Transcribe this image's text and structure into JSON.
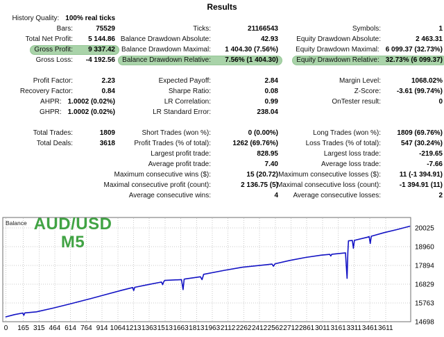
{
  "title": "Results",
  "accent": {
    "highlight_bg": "#a9d3a9",
    "highlight_border": "#95c695",
    "watermark_green": "#41a344",
    "line_blue": "#1212c4",
    "grid_gray": "#c9c9c9",
    "chart_border": "#6e6e6e"
  },
  "stats": {
    "left": {
      "rows": [
        {
          "label": "History Quality:",
          "value": "100% real ticks",
          "hl": false
        },
        {
          "label": "Bars:",
          "value": "75529",
          "hl": false
        },
        {
          "label": "Total Net Profit:",
          "value": "5 144.86",
          "hl": false
        },
        {
          "label": "Gross Profit:",
          "value": "9 337.42",
          "hl": true
        },
        {
          "label": "Gross Loss:",
          "value": "-4 192.56",
          "hl": false
        },
        {
          "label": "",
          "value": "",
          "hl": false
        },
        {
          "label": "Profit Factor:",
          "value": "2.23",
          "hl": false
        },
        {
          "label": "Recovery Factor:",
          "value": "0.84",
          "hl": false
        },
        {
          "label": "AHPR:",
          "value": "1.0002 (0.02%)",
          "hl": false
        },
        {
          "label": "GHPR:",
          "value": "1.0002 (0.02%)",
          "hl": false
        },
        {
          "label": "",
          "value": "",
          "hl": false
        },
        {
          "label": "Total Trades:",
          "value": "1809",
          "hl": false
        },
        {
          "label": "Total Deals:",
          "value": "3618",
          "hl": false
        }
      ]
    },
    "middle": {
      "rows": [
        {
          "label": "",
          "value": "",
          "hl": false
        },
        {
          "label": "Ticks:",
          "value": "21166543",
          "hl": false
        },
        {
          "label": "Balance Drawdown Absolute:",
          "value": "42.93",
          "hl": false
        },
        {
          "label": "Balance Drawdown Maximal:",
          "value": "1 404.30 (7.56%)",
          "hl": false
        },
        {
          "label": "Balance Drawdown Relative:",
          "value": "7.56% (1 404.30)",
          "hl": true
        },
        {
          "label": "",
          "value": "",
          "hl": false
        },
        {
          "label": "Expected Payoff:",
          "value": "2.84",
          "hl": false
        },
        {
          "label": "Sharpe Ratio:",
          "value": "0.08",
          "hl": false
        },
        {
          "label": "LR Correlation:",
          "value": "0.99",
          "hl": false
        },
        {
          "label": "LR Standard Error:",
          "value": "238.04",
          "hl": false
        },
        {
          "label": "",
          "value": "",
          "hl": false
        },
        {
          "label": "Short Trades (won %):",
          "value": "0 (0.00%)",
          "hl": false
        },
        {
          "label": "Profit Trades (% of total):",
          "value": "1262 (69.76%)",
          "hl": false
        },
        {
          "label": "Largest profit trade:",
          "value": "828.95",
          "hl": false
        },
        {
          "label": "Average profit trade:",
          "value": "7.40",
          "hl": false
        },
        {
          "label": "Maximum consecutive wins ($):",
          "value": "15 (20.72)",
          "hl": false
        },
        {
          "label": "Maximal consecutive profit (count):",
          "value": "2 136.75 (5)",
          "hl": false
        },
        {
          "label": "Average consecutive wins:",
          "value": "4",
          "hl": false
        }
      ]
    },
    "right": {
      "rows": [
        {
          "label": "",
          "value": "",
          "hl": false
        },
        {
          "label": "Symbols:",
          "value": "1",
          "hl": false
        },
        {
          "label": "Equity Drawdown Absolute:",
          "value": "2 463.31",
          "hl": false
        },
        {
          "label": "Equity Drawdown Maximal:",
          "value": "6 099.37 (32.73%)",
          "hl": false
        },
        {
          "label": "Equity Drawdown Relative:",
          "value": "32.73% (6 099.37)",
          "hl": true
        },
        {
          "label": "",
          "value": "",
          "hl": false
        },
        {
          "label": "Margin Level:",
          "value": "1068.02%",
          "hl": false
        },
        {
          "label": "Z-Score:",
          "value": "-3.61 (99.74%)",
          "hl": false
        },
        {
          "label": "OnTester result:",
          "value": "0",
          "hl": false
        },
        {
          "label": "",
          "value": "",
          "hl": false
        },
        {
          "label": "",
          "value": "",
          "hl": false
        },
        {
          "label": "Long Trades (won %):",
          "value": "1809 (69.76%)",
          "hl": false
        },
        {
          "label": "Loss Trades (% of total):",
          "value": "547 (30.24%)",
          "hl": false
        },
        {
          "label": "Largest loss trade:",
          "value": "-219.65",
          "hl": false
        },
        {
          "label": "Average loss trade:",
          "value": "-7.66",
          "hl": false
        },
        {
          "label": "Maximum consecutive losses ($):",
          "value": "11 (-1 394.91)",
          "hl": false
        },
        {
          "label": "Maximal consecutive loss (count):",
          "value": "-1 394.91 (11)",
          "hl": false
        },
        {
          "label": "Average consecutive losses:",
          "value": "2",
          "hl": false
        }
      ]
    }
  },
  "chart": {
    "balance_label": "Balance",
    "watermark_line1": "AUD/USD",
    "watermark_line2": "M5"
  },
  "chart_data": {
    "type": "line",
    "title": "Balance",
    "series_name": "Balance",
    "symbol": "AUD/USD",
    "timeframe": "M5",
    "x_ticks": [
      0,
      165,
      315,
      464,
      614,
      764,
      914,
      1064,
      1213,
      1363,
      1513,
      1663,
      1813,
      1963,
      2112,
      2262,
      2412,
      2562,
      2712,
      2861,
      3011,
      3161,
      3311,
      3461,
      3611
    ],
    "y_ticks": [
      14698,
      15763,
      16829,
      17894,
      18960,
      20025
    ],
    "y_grid": [
      15763,
      16829,
      17894,
      18960,
      20025
    ],
    "x_range": [
      -30,
      3850
    ],
    "y_range": [
      14698,
      20617
    ],
    "grid": true,
    "legend_position": "none",
    "points": [
      [
        0,
        14975
      ],
      [
        80,
        15100
      ],
      [
        160,
        15190
      ],
      [
        170,
        15060
      ],
      [
        180,
        15200
      ],
      [
        290,
        15260
      ],
      [
        450,
        15470
      ],
      [
        620,
        15725
      ],
      [
        800,
        16000
      ],
      [
        950,
        16240
      ],
      [
        1100,
        16480
      ],
      [
        1205,
        16640
      ],
      [
        1215,
        16470
      ],
      [
        1225,
        16650
      ],
      [
        1350,
        16800
      ],
      [
        1480,
        16950
      ],
      [
        1490,
        16800
      ],
      [
        1500,
        16960
      ],
      [
        1510,
        17040
      ],
      [
        1670,
        17090
      ],
      [
        1685,
        16520
      ],
      [
        1695,
        17110
      ],
      [
        1700,
        17120
      ],
      [
        1850,
        17250
      ],
      [
        1865,
        17090
      ],
      [
        1875,
        17270
      ],
      [
        1880,
        17390
      ],
      [
        2080,
        17620
      ],
      [
        2250,
        17790
      ],
      [
        2530,
        17970
      ],
      [
        2545,
        17850
      ],
      [
        2560,
        17990
      ],
      [
        2700,
        18180
      ],
      [
        2850,
        18350
      ],
      [
        3000,
        18480
      ],
      [
        3080,
        18520
      ],
      [
        3090,
        18430
      ],
      [
        3100,
        18530
      ],
      [
        3230,
        18610
      ],
      [
        3245,
        17160
      ],
      [
        3252,
        18620
      ],
      [
        3258,
        19290
      ],
      [
        3270,
        19300
      ],
      [
        3295,
        19310
      ],
      [
        3305,
        18870
      ],
      [
        3315,
        19320
      ],
      [
        3440,
        19500
      ],
      [
        3455,
        19530
      ],
      [
        3465,
        19140
      ],
      [
        3475,
        19550
      ],
      [
        3600,
        19760
      ],
      [
        3720,
        19930
      ],
      [
        3840,
        20120
      ]
    ]
  }
}
